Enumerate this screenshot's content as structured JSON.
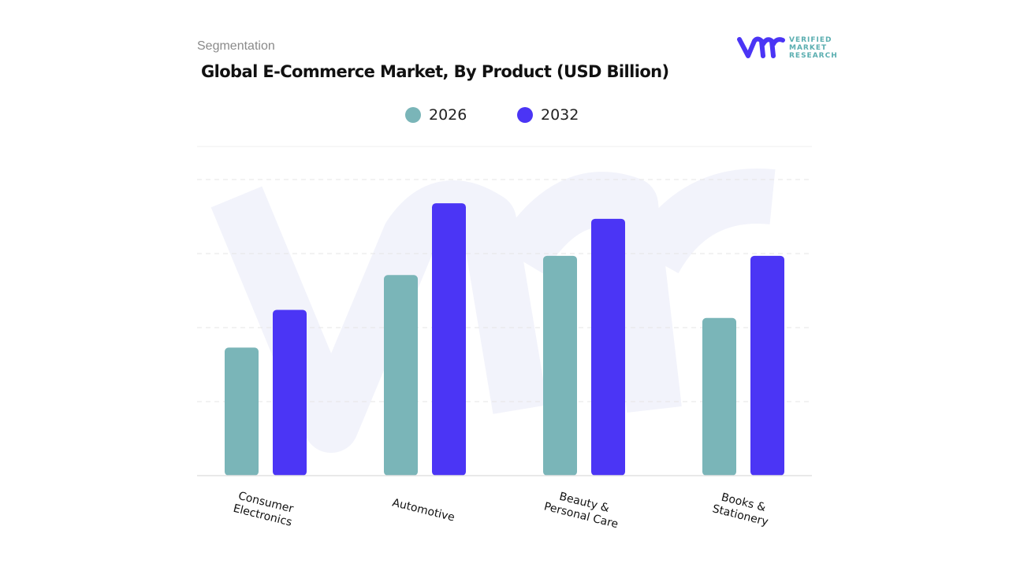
{
  "header": {
    "segment_label": "Segmentation",
    "title": "Global E-Commerce Market, By Product (USD Billion)"
  },
  "logo": {
    "text": [
      "VERIFIED",
      "MARKET",
      "RESEARCH"
    ],
    "mark": "vmr"
  },
  "colors": {
    "s2026": "#7ab5b8",
    "s2032": "#4b35f5",
    "grid": "#e6e6e6",
    "watermark": "#f2f3fb"
  },
  "chart_data": {
    "type": "bar",
    "title": "Global E-Commerce Market, By Product (USD Billion)",
    "categories": [
      "Consumer\nElectronics",
      "Automotive",
      "Beauty &\nPersonal Care",
      "Books &\nStationery"
    ],
    "series": [
      {
        "name": "2026",
        "values": [
          1.73,
          2.71,
          2.97,
          2.13
        ]
      },
      {
        "name": "2032",
        "values": [
          2.24,
          3.68,
          3.47,
          2.97
        ]
      }
    ],
    "ylim": [
      0,
      4
    ],
    "y_ticks_shown": false,
    "grid": "horizontal dashed",
    "legend": "top-center",
    "xlabel": "",
    "ylabel": ""
  }
}
